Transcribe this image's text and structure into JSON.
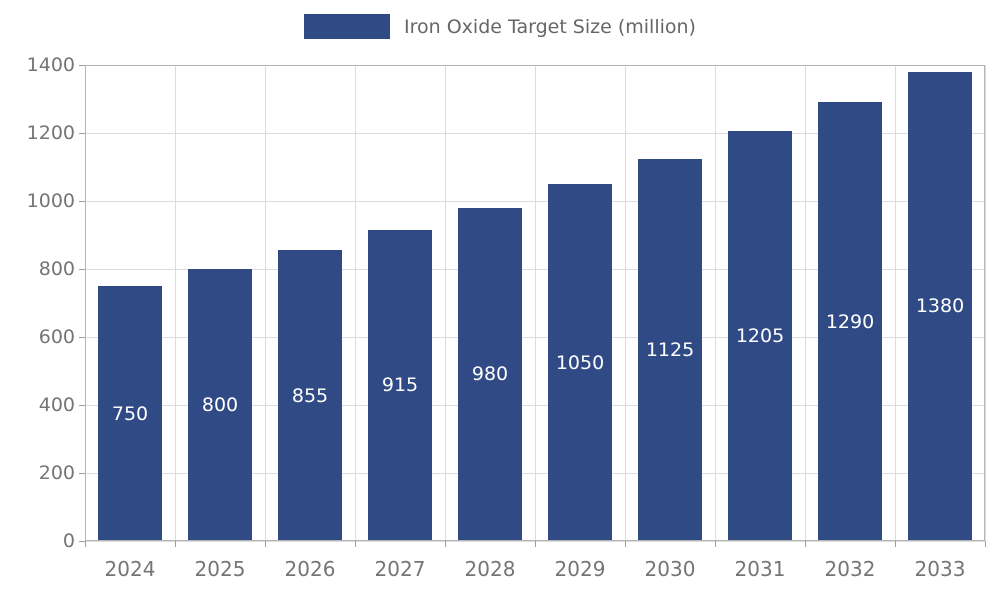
{
  "chart_data": {
    "type": "bar",
    "title": "",
    "legend": {
      "label": "Iron Oxide Target Size (million)",
      "position": "top"
    },
    "categories": [
      "2024",
      "2025",
      "2026",
      "2027",
      "2028",
      "2029",
      "2030",
      "2031",
      "2032",
      "2033"
    ],
    "series": [
      {
        "name": "Iron Oxide Target Size (million)",
        "values": [
          750,
          800,
          855,
          915,
          980,
          1050,
          1125,
          1205,
          1290,
          1380
        ]
      }
    ],
    "xlabel": "",
    "ylabel": "",
    "ylim": [
      0,
      1400
    ],
    "y_ticks": [
      0,
      200,
      400,
      600,
      800,
      1000,
      1200,
      1400
    ],
    "grid": true,
    "value_labels": "inside-center",
    "colors": {
      "bar": "#304a85",
      "grid": "#dcdcdc",
      "axis": "#9e9e9e",
      "tick_label": "#757575",
      "value_label": "#ffffff",
      "legend_text": "#666666",
      "background": "#ffffff"
    }
  }
}
